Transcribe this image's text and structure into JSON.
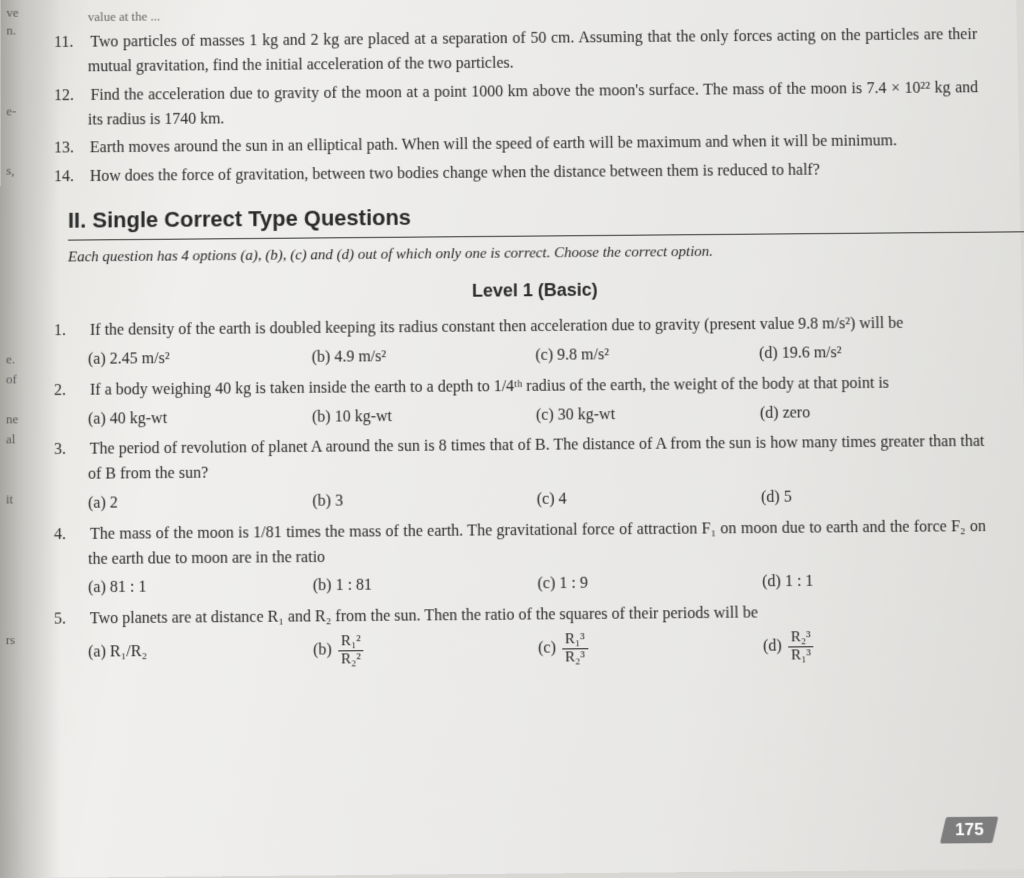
{
  "side": {
    "l1": "ve",
    "l2": "n.",
    "l3": "e-",
    "l4": "s,",
    "l5": "e.",
    "l6": "of",
    "l7": "ne",
    "l8": "al",
    "l9": "it",
    "ls": "rs"
  },
  "preamble": {
    "line0": "value at the ...",
    "q11_num": "11.",
    "q11": "Two particles of masses 1 kg and 2 kg are placed at a separation of 50 cm. Assuming that the only forces acting on the particles are their mutual gravitation, find the initial acceleration of the two particles.",
    "q12_num": "12.",
    "q12": "Find the acceleration due to gravity of the moon at a point 1000 km above the moon's surface. The mass of the moon is 7.4 × 10²² kg and its radius is 1740 km.",
    "q13_num": "13.",
    "q13": "Earth moves around the sun in an elliptical path. When will the speed of earth will be maximum and when it will be minimum.",
    "q14_num": "14.",
    "q14": "How does the force of gravitation, between two bodies change when the distance between them is reduced to half?"
  },
  "section": {
    "prefix": "II.",
    "title": "Single Correct Type Questions",
    "note": "Each question has 4 options (a), (b), (c) and (d) out of which only one is correct. Choose the correct option.",
    "level": "Level 1 (Basic)"
  },
  "mcq": [
    {
      "num": "1.",
      "text": "If the density of the earth is doubled keeping its radius constant then acceleration due to gravity (present value 9.8 m/s²) will be",
      "opts": [
        "(a) 2.45 m/s²",
        "(b) 4.9 m/s²",
        "(c) 9.8 m/s²",
        "(d) 19.6 m/s²"
      ]
    },
    {
      "num": "2.",
      "text": "If a body weighing 40 kg is taken inside the earth to a depth to 1/4ᵗʰ radius of the earth, the weight of the body at that point is",
      "opts": [
        "(a) 40 kg-wt",
        "(b) 10 kg-wt",
        "(c) 30 kg-wt",
        "(d) zero"
      ]
    },
    {
      "num": "3.",
      "text": "The period of revolution of planet A around the sun is 8 times that of B. The distance of A from the sun is how many times greater than that of B from the sun?",
      "opts": [
        "(a) 2",
        "(b) 3",
        "(c) 4",
        "(d) 5"
      ]
    },
    {
      "num": "4.",
      "text": "The mass of the moon is 1/81 times the mass of the earth. The gravitational force of attraction F₁ on moon due to earth and the force F₂ on the earth due to moon are in the ratio",
      "opts": [
        "(a) 81 : 1",
        "(b) 1 : 81",
        "(c) 1 : 9",
        "(d) 1 : 1"
      ]
    },
    {
      "num": "5.",
      "text": "Two planets are at distance R₁ and R₂ from the sun. Then the ratio of the squares of their periods will be",
      "opts_frac": {
        "a": "(a) R₁/R₂",
        "b_num": "R₁²",
        "b_den": "R₂²",
        "c_num": "R₁³",
        "c_den": "R₂³",
        "d_num": "R₂³",
        "d_den": "R₁³"
      }
    }
  ],
  "page_number": "175"
}
